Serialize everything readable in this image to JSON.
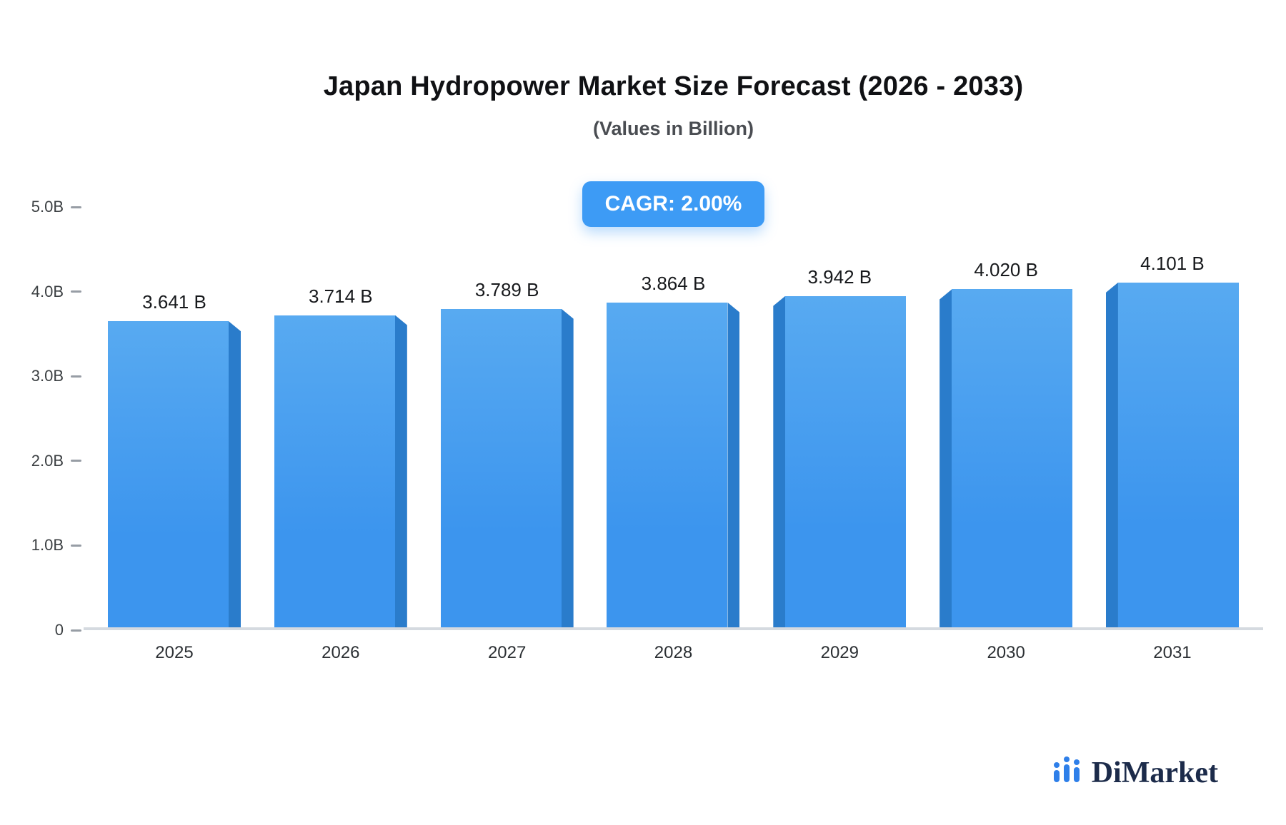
{
  "header": {
    "title": "Japan Hydropower Market Size Forecast (2026 - 2033)",
    "subtitle": "(Values in Billion)",
    "cagr_badge": "CAGR: 2.00%"
  },
  "chart_data": {
    "type": "bar",
    "categories": [
      "2025",
      "2026",
      "2027",
      "2028",
      "2029",
      "2030",
      "2031"
    ],
    "values": [
      3.641,
      3.714,
      3.789,
      3.864,
      3.942,
      4.02,
      4.101
    ],
    "bar_labels": [
      "3.641 B",
      "3.714 B",
      "3.789 B",
      "3.864 B",
      "3.942 B",
      "4.020 B",
      "4.101 B"
    ],
    "title": "Japan Hydropower Market Size Forecast (2026 - 2033)",
    "subtitle": "(Values in Billion)",
    "xlabel": "",
    "ylabel": "",
    "ylim": [
      0,
      5
    ],
    "ytick_labels": [
      "5.0B",
      "4.0B",
      "3.0B",
      "2.0B",
      "1.0B",
      "0"
    ],
    "grid": false,
    "legend": false,
    "bar_sides": [
      "right",
      "right",
      "right",
      "right",
      "left",
      "left",
      "left"
    ],
    "colors": {
      "bar_top": "#58aaf1",
      "bar_bottom": "#3c95ee",
      "bar_side": "#2a7ccb",
      "badge_bg": "#3d9bf5",
      "axis_line": "#d5dae0",
      "logo_blue": "#2e7fe9",
      "logo_navy": "#1c2b4a"
    }
  },
  "branding": {
    "logo_text": "DiMarket",
    "logo_icon": "bar-chart-icon"
  }
}
